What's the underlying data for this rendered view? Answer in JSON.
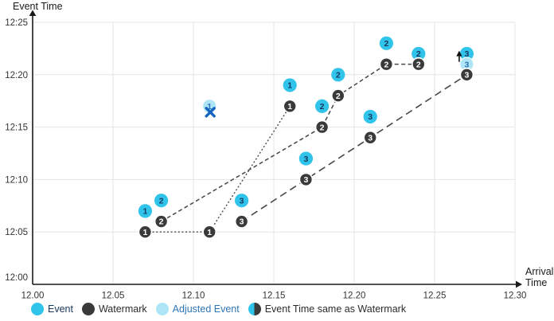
{
  "titles": {
    "y_axis": "Event Time",
    "x_line1": "Arrival",
    "x_line2": "Time"
  },
  "colors": {
    "event": "#30C4EB",
    "adjusted": "#AEE6F7",
    "watermark": "#3A3A3A",
    "marker_ring": "#FFFFFF",
    "event_number": "#17365D",
    "adjusted_number": "#2E75B6",
    "watermark_number": "#FFFFFF",
    "line": "#474747",
    "grid": "#E4E4E4",
    "axis": "#1A1A1A",
    "x_mark": "#1565C0",
    "arrow": "#111111",
    "tick_text": "#333333"
  },
  "chart_data": {
    "type": "scatter",
    "title": "",
    "xlabel": "Arrival Time",
    "ylabel": "Event Time",
    "x_axis": {
      "min": 12.0,
      "max": 12.3,
      "tick_step": 0.05,
      "ticks": [
        "12.00",
        "12.05",
        "12.10",
        "12.15",
        "12.20",
        "12.25",
        "12.30"
      ]
    },
    "y_axis": {
      "min_minutes": 0,
      "max_minutes": 25,
      "tick_step_minutes": 5,
      "ticks": [
        "12:00",
        "12:05",
        "12:10",
        "12:15",
        "12:20",
        "12:25"
      ]
    },
    "grid": true,
    "series": [
      {
        "name": "Event",
        "marker": "event",
        "points": [
          {
            "label": "1",
            "arrival": 12.07,
            "event_time": "12:07"
          },
          {
            "label": "2",
            "arrival": 12.08,
            "event_time": "12:08"
          },
          {
            "label": "3",
            "arrival": 12.13,
            "event_time": "12:08"
          },
          {
            "label": "1",
            "arrival": 12.16,
            "event_time": "12:19"
          },
          {
            "label": "2",
            "arrival": 12.18,
            "event_time": "12:17"
          },
          {
            "label": "2",
            "arrival": 12.19,
            "event_time": "12:20"
          },
          {
            "label": "3",
            "arrival": 12.17,
            "event_time": "12:12"
          },
          {
            "label": "3",
            "arrival": 12.21,
            "event_time": "12:16"
          },
          {
            "label": "2",
            "arrival": 12.22,
            "event_time": "12:23"
          },
          {
            "label": "2",
            "arrival": 12.24,
            "event_time": "12:22"
          },
          {
            "label": "3",
            "arrival": 12.27,
            "event_time": "12:22"
          }
        ]
      },
      {
        "name": "Adjusted Event",
        "marker": "adjusted",
        "points": [
          {
            "label": "1",
            "arrival": 12.11,
            "event_time": "12:17",
            "crossed_out": true
          },
          {
            "label": "3",
            "arrival": 12.27,
            "event_time": "12:21",
            "adjustment_arrow": true
          }
        ]
      },
      {
        "name": "Watermark",
        "marker": "watermark",
        "points": [
          {
            "label": "1",
            "arrival": 12.07,
            "event_time": "12:05"
          },
          {
            "label": "1",
            "arrival": 12.11,
            "event_time": "12:05"
          },
          {
            "label": "1",
            "arrival": 12.16,
            "event_time": "12:17"
          },
          {
            "label": "2",
            "arrival": 12.08,
            "event_time": "12:06"
          },
          {
            "label": "2",
            "arrival": 12.18,
            "event_time": "12:15"
          },
          {
            "label": "2",
            "arrival": 12.19,
            "event_time": "12:18"
          },
          {
            "label": "2",
            "arrival": 12.22,
            "event_time": "12:21"
          },
          {
            "label": "2",
            "arrival": 12.24,
            "event_time": "12:21"
          },
          {
            "label": "3",
            "arrival": 12.13,
            "event_time": "12:06"
          },
          {
            "label": "3",
            "arrival": 12.17,
            "event_time": "12:10"
          },
          {
            "label": "3",
            "arrival": 12.21,
            "event_time": "12:14"
          },
          {
            "label": "3",
            "arrival": 12.27,
            "event_time": "12:20"
          }
        ]
      }
    ],
    "watermark_lines": [
      {
        "event": "1",
        "style": "dotted",
        "points": [
          [
            12.07,
            5
          ],
          [
            12.11,
            5
          ],
          [
            12.16,
            17
          ]
        ]
      },
      {
        "event": "2",
        "style": "dashed",
        "points": [
          [
            12.08,
            6
          ],
          [
            12.18,
            15
          ],
          [
            12.19,
            18
          ],
          [
            12.22,
            21
          ],
          [
            12.24,
            21
          ]
        ]
      },
      {
        "event": "3",
        "style": "long-dash",
        "points": [
          [
            12.13,
            6
          ],
          [
            12.17,
            10
          ],
          [
            12.21,
            14
          ],
          [
            12.27,
            20
          ]
        ]
      }
    ],
    "legend_position": "bottom"
  },
  "legend": [
    {
      "swatch": "event",
      "label": "Event",
      "color": "#17365D"
    },
    {
      "swatch": "watermark",
      "label": "Watermark",
      "color": "#2B2B2B"
    },
    {
      "swatch": "adjusted",
      "label": "Adjusted Event",
      "color": "#2E75B6"
    },
    {
      "swatch": "half",
      "label": "Event Time same as Watermark",
      "color": "#2B2B2B"
    }
  ]
}
